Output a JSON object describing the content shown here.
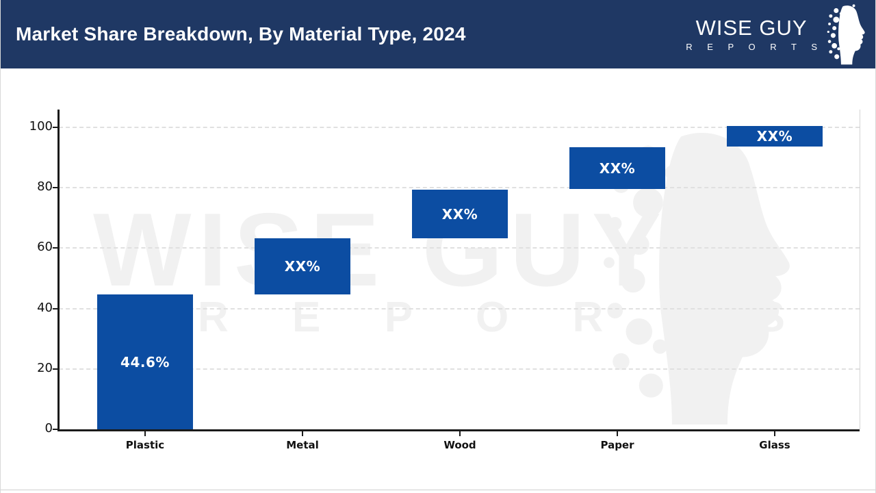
{
  "header": {
    "title": "Market Share Breakdown, By Material Type, 2024",
    "logo": {
      "primary": "WISE GUY",
      "secondary": "R E P O R T S"
    }
  },
  "watermark": {
    "primary": "WISE GUY",
    "secondary": "R E P O R T S"
  },
  "colors": {
    "header_bg": "#1f3864",
    "bar_fill": "#0c4da2",
    "bar_label": "#ffffff",
    "grid_line": "#e0e0e0",
    "axis_line": "#1a1a1a",
    "tick_text": "#111111",
    "watermark": "#f1f1f1"
  },
  "chart_data": {
    "type": "bar",
    "subtype": "waterfall",
    "title": "Market Share Breakdown, By Material Type, 2024",
    "categories": [
      "Plastic",
      "Metal",
      "Wood",
      "Paper",
      "Glass"
    ],
    "segments": [
      {
        "category": "Plastic",
        "start": 0,
        "end": 44.6,
        "label": "44.6%"
      },
      {
        "category": "Metal",
        "start": 44.6,
        "end": 63.2,
        "label": "XX%"
      },
      {
        "category": "Wood",
        "start": 63.2,
        "end": 79.4,
        "label": "XX%"
      },
      {
        "category": "Paper",
        "start": 79.6,
        "end": 93.4,
        "label": "XX%"
      },
      {
        "category": "Glass",
        "start": 93.6,
        "end": 100.4,
        "label": "XX%"
      }
    ],
    "xlabel": "",
    "ylabel": "",
    "ylim": [
      0,
      106
    ],
    "yticks": [
      0,
      20,
      40,
      60,
      80,
      100
    ],
    "grid": "horizontal-dashed",
    "legend": "none"
  }
}
